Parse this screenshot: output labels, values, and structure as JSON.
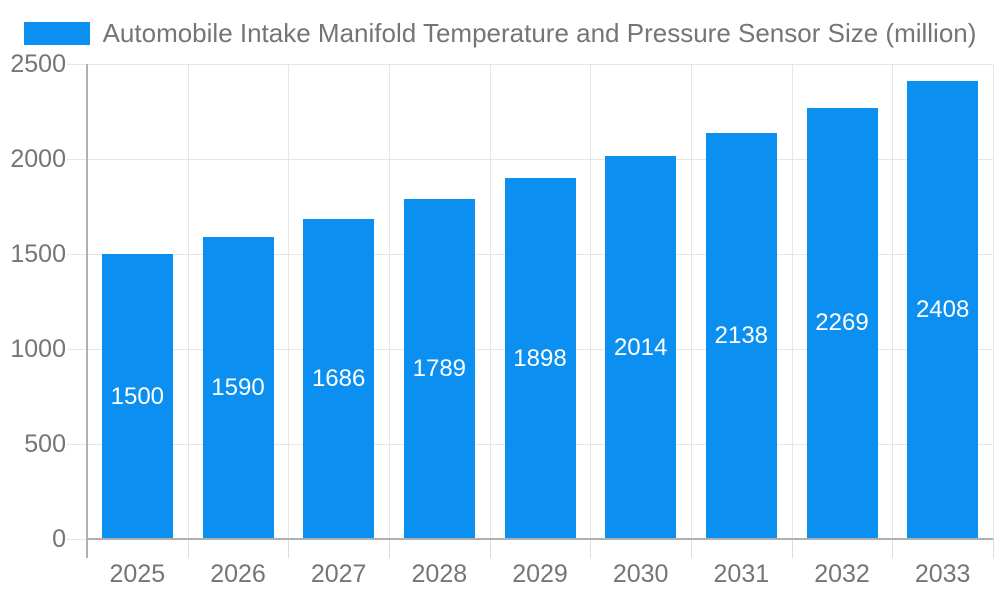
{
  "legend": {
    "swatch_color": "#0b90f2"
  },
  "chart_data": {
    "type": "bar",
    "title": "Automobile Intake Manifold Temperature and Pressure Sensor Size (million)",
    "categories": [
      "2025",
      "2026",
      "2027",
      "2028",
      "2029",
      "2030",
      "2031",
      "2032",
      "2033"
    ],
    "values": [
      1500,
      1590,
      1686,
      1789,
      1898,
      2014,
      2138,
      2269,
      2408
    ],
    "xlabel": "",
    "ylabel": "",
    "ylim": [
      0,
      2500
    ],
    "yticks": [
      0,
      500,
      1000,
      1500,
      2000,
      2500
    ],
    "grid": true,
    "legend_position": "top-center",
    "bar_color": "#0b90f2",
    "value_label_color": "#ffffff",
    "value_labels_inside": true
  }
}
